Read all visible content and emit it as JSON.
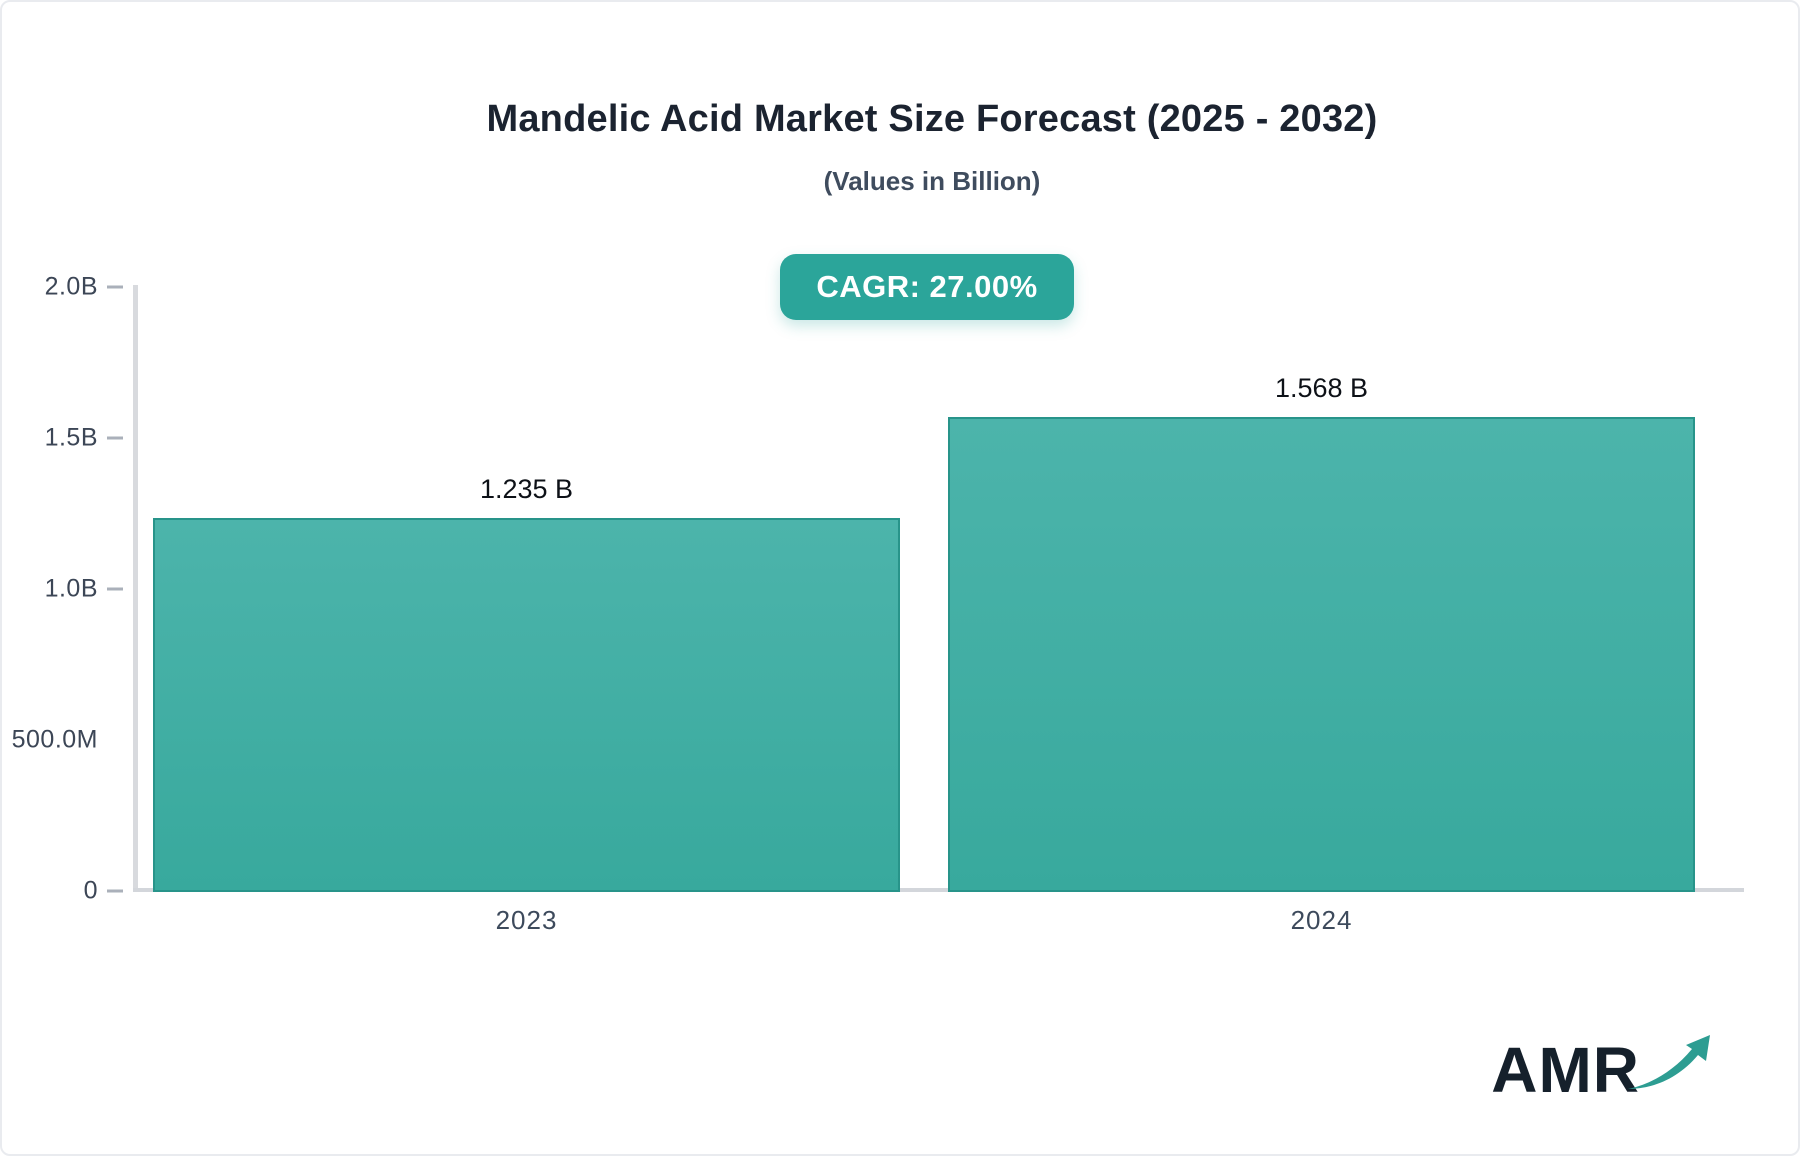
{
  "header": {
    "title": "Mandelic Acid Market Size Forecast (2025 - 2032)",
    "subtitle": "(Values in Billion)",
    "cagr_badge": "CAGR: 27.00%"
  },
  "chart_data": {
    "type": "bar",
    "title": "Mandelic Acid Market Size Forecast (2025 - 2032)",
    "subtitle": "(Values in Billion)",
    "annotation": "CAGR: 27.00%",
    "categories": [
      "2023",
      "2024"
    ],
    "values": [
      1.235,
      1.568
    ],
    "value_labels": [
      "1.235 B",
      "1.568 B"
    ],
    "xlabel": "",
    "ylabel": "",
    "ylim": [
      0,
      2.0
    ],
    "yticks": [
      {
        "label": "2.0B",
        "value": 2.0,
        "dash": true
      },
      {
        "label": "1.5B",
        "value": 1.5,
        "dash": true
      },
      {
        "label": "1.0B",
        "value": 1.0,
        "dash": true
      },
      {
        "label": "500.0M",
        "value": 0.5,
        "dash": false
      },
      {
        "label": "0",
        "value": 0.0,
        "dash": true
      }
    ],
    "grid": false,
    "legend": "none"
  },
  "colors": {
    "accent_teal": "#2ba59a",
    "bar_fill_top": "#4cb4ab",
    "bar_fill_bottom": "#38a99d",
    "bar_border": "#28948a",
    "badge_bg": "#2ba59a",
    "axis_line": "#d8dade",
    "tick_dash": "#aab0ba",
    "title_text": "#1b2330",
    "logo_arrow": "#2d9d92"
  },
  "logo": {
    "text": "AMR"
  }
}
